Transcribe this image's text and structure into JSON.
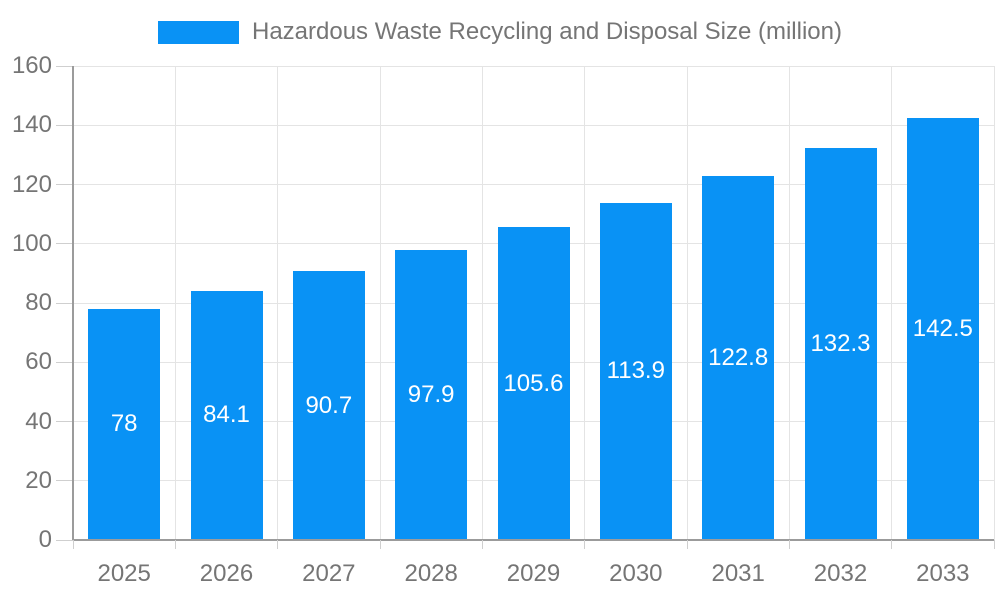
{
  "colors": {
    "bar": "#0992f5",
    "grid": "#e4e4e4",
    "axis": "#9b9b9b",
    "tick": "#cfcfcf",
    "text": "#757575",
    "bar_label": "#ffffff",
    "background": "#ffffff"
  },
  "chart_data": {
    "type": "bar",
    "title": "Hazardous Waste Recycling and Disposal Size (million)",
    "legend": [
      "Hazardous Waste Recycling and Disposal Size (million)"
    ],
    "legend_position": "top-center",
    "categories": [
      "2025",
      "2026",
      "2027",
      "2028",
      "2029",
      "2030",
      "2031",
      "2032",
      "2033"
    ],
    "series": [
      {
        "name": "Hazardous Waste Recycling and Disposal Size (million)",
        "values": [
          78,
          84.1,
          90.7,
          97.9,
          105.6,
          113.9,
          122.8,
          132.3,
          142.5
        ]
      }
    ],
    "bar_value_labels": [
      "78",
      "84.1",
      "90.7",
      "97.9",
      "105.6",
      "113.9",
      "122.8",
      "132.3",
      "142.5"
    ],
    "xlabel": "",
    "ylabel": "",
    "ylim": [
      0,
      160
    ],
    "ytick_step": 20,
    "yticks": [
      0,
      20,
      40,
      60,
      80,
      100,
      120,
      140,
      160
    ],
    "grid": true,
    "bar_label_position": "inside-center"
  }
}
